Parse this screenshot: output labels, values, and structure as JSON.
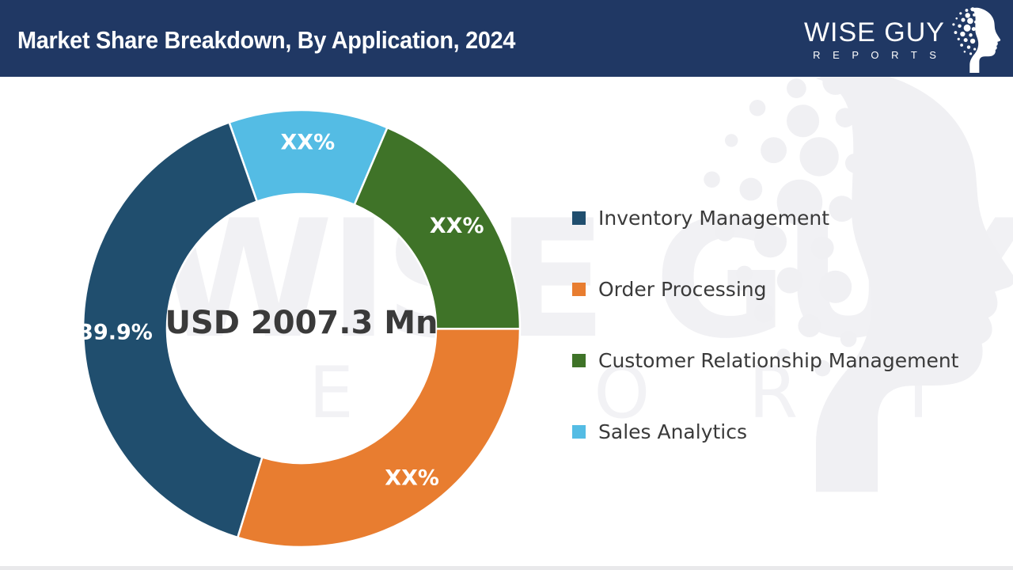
{
  "header": {
    "title": "Market Share Breakdown, By Application, 2024",
    "logo": {
      "line1": "WISE GUY",
      "line2": "R E P O R T S"
    }
  },
  "watermark": {
    "line1": "WISE GUY",
    "line2": "E P O R T"
  },
  "chart_data": {
    "type": "donut",
    "title": "Market Share Breakdown, By Application, 2024",
    "center_label": "USD 2007.3 Mn",
    "start_angle_deg": -19.35,
    "draw_order": [
      3,
      2,
      1,
      0
    ],
    "inner_radius_ratio": 0.616,
    "legend_position": "right",
    "segments": [
      {
        "label": "Inventory Management",
        "value_pct": 39.9,
        "display": "39.9%",
        "color": "#204E6E"
      },
      {
        "label": "Order Processing",
        "value_pct": 29.7,
        "display": "XX%",
        "color": "#E87D30"
      },
      {
        "label": "Customer Relationship Management",
        "value_pct": 18.6,
        "display": "XX%",
        "color": "#3F7328"
      },
      {
        "label": "Sales Analytics",
        "value_pct": 11.8,
        "display": "XX%",
        "color": "#54BCE4"
      }
    ]
  }
}
